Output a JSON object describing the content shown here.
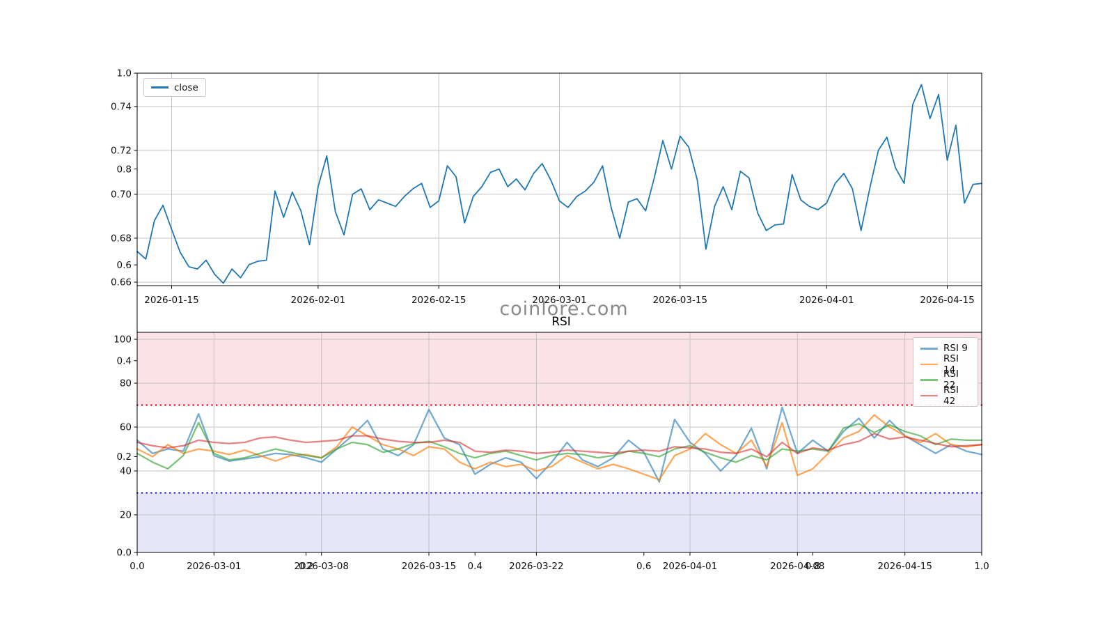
{
  "watermark": "coinlore.com",
  "colors": {
    "background": "#ffffff",
    "grid": "#c4c4c4",
    "spine": "#000000",
    "tick_text": "#111111",
    "watermark_gray": "#8a8a8a",
    "close_blue": "#1f77b4",
    "rsi9_blue": "#1f77b4",
    "rsi14_orange": "#ff7f0e",
    "rsi22_green": "#2ca02c",
    "rsi42_red": "#d62728",
    "overbought_dotted": "#e50019",
    "oversold_dotted": "#1616cd"
  },
  "chart_data": [
    {
      "type": "line",
      "name": "price",
      "title": "",
      "legend_position": "upper left",
      "grid": true,
      "ylim": [
        0.6584,
        0.7552
      ],
      "y_ticks": [
        0.66,
        0.68,
        0.7,
        0.72,
        0.74
      ],
      "y2_ticks": [
        1.0,
        0.8,
        0.6
      ],
      "x_tick_labels": [
        "2026-01-15",
        "2026-02-01",
        "2026-02-15",
        "2026-03-01",
        "2026-03-15",
        "2026-04-01",
        "2026-04-15"
      ],
      "x": [
        "2026-01-11",
        "2026-01-12",
        "2026-01-13",
        "2026-01-14",
        "2026-01-15",
        "2026-01-16",
        "2026-01-17",
        "2026-01-18",
        "2026-01-19",
        "2026-01-20",
        "2026-01-21",
        "2026-01-22",
        "2026-01-23",
        "2026-01-24",
        "2026-01-25",
        "2026-01-26",
        "2026-01-27",
        "2026-01-28",
        "2026-01-29",
        "2026-01-30",
        "2026-01-31",
        "2026-02-01",
        "2026-02-02",
        "2026-02-03",
        "2026-02-04",
        "2026-02-05",
        "2026-02-06",
        "2026-02-07",
        "2026-02-08",
        "2026-02-09",
        "2026-02-10",
        "2026-02-11",
        "2026-02-12",
        "2026-02-13",
        "2026-02-14",
        "2026-02-15",
        "2026-02-16",
        "2026-02-17",
        "2026-02-18",
        "2026-02-19",
        "2026-02-20",
        "2026-02-21",
        "2026-02-22",
        "2026-02-23",
        "2026-02-24",
        "2026-02-25",
        "2026-02-26",
        "2026-02-27",
        "2026-02-28",
        "2026-03-01",
        "2026-03-02",
        "2026-03-03",
        "2026-03-04",
        "2026-03-05",
        "2026-03-06",
        "2026-03-07",
        "2026-03-08",
        "2026-03-09",
        "2026-03-10",
        "2026-03-11",
        "2026-03-12",
        "2026-03-13",
        "2026-03-14",
        "2026-03-15",
        "2026-03-16",
        "2026-03-17",
        "2026-03-18",
        "2026-03-19",
        "2026-03-20",
        "2026-03-21",
        "2026-03-22",
        "2026-03-23",
        "2026-03-24",
        "2026-03-25",
        "2026-03-26",
        "2026-03-27",
        "2026-03-28",
        "2026-03-29",
        "2026-03-30",
        "2026-03-31",
        "2026-04-01",
        "2026-04-02",
        "2026-04-03",
        "2026-04-04",
        "2026-04-05",
        "2026-04-06",
        "2026-04-07",
        "2026-04-08",
        "2026-04-09",
        "2026-04-10",
        "2026-04-11",
        "2026-04-12",
        "2026-04-13",
        "2026-04-14",
        "2026-04-15",
        "2026-04-16",
        "2026-04-17",
        "2026-04-18",
        "2026-04-19"
      ],
      "series": [
        {
          "name": "close",
          "color": "#1f77b4",
          "width": 1.8,
          "opacity": 1,
          "values": [
            0.674,
            0.6705,
            0.688,
            0.695,
            0.684,
            0.6735,
            0.667,
            0.666,
            0.67,
            0.6635,
            0.6595,
            0.666,
            0.662,
            0.668,
            0.6695,
            0.67,
            0.7015,
            0.6895,
            0.701,
            0.6925,
            0.677,
            0.7035,
            0.7175,
            0.692,
            0.6815,
            0.7,
            0.7025,
            0.693,
            0.6975,
            0.696,
            0.6945,
            0.699,
            0.7025,
            0.705,
            0.694,
            0.697,
            0.713,
            0.708,
            0.687,
            0.699,
            0.7035,
            0.71,
            0.7115,
            0.7035,
            0.707,
            0.702,
            0.7095,
            0.714,
            0.7065,
            0.697,
            0.694,
            0.699,
            0.7015,
            0.7055,
            0.713,
            0.694,
            0.68,
            0.6965,
            0.698,
            0.6925,
            0.7075,
            0.7245,
            0.7115,
            0.7265,
            0.7215,
            0.7065,
            0.675,
            0.6945,
            0.7035,
            0.693,
            0.7105,
            0.7075,
            0.6915,
            0.6835,
            0.686,
            0.6865,
            0.709,
            0.6975,
            0.6945,
            0.693,
            0.696,
            0.705,
            0.7095,
            0.7025,
            0.6835,
            0.7025,
            0.72,
            0.726,
            0.712,
            0.705,
            0.741,
            0.75,
            0.7345,
            0.7455,
            0.7155,
            0.7315,
            0.696,
            0.7045,
            0.705
          ]
        }
      ]
    },
    {
      "type": "line",
      "name": "rsi",
      "title": "RSI",
      "legend_position": "upper right",
      "grid": true,
      "ylim": [
        2.86,
        103.17
      ],
      "y_ticks": [
        20,
        40,
        60,
        80,
        100
      ],
      "y2_ticks": [
        0.4,
        0.2,
        0.0
      ],
      "x2_ticks": [
        0.0,
        0.2,
        0.4,
        0.6,
        0.8,
        1.0
      ],
      "overbought_level": 70,
      "oversold_level": 30,
      "overbought_line_color": "#e50019",
      "oversold_line_color": "#1616cd",
      "overbought_band_color": "rgba(220,20,60,0.12)",
      "oversold_band_color": "rgba(60,60,210,0.13)",
      "x_tick_labels": [
        "2026-03-01",
        "2026-03-08",
        "2026-03-15",
        "2026-03-22",
        "2026-04-01",
        "2026-04-08",
        "2026-04-15"
      ],
      "x": [
        "2026-02-24",
        "2026-02-25",
        "2026-02-26",
        "2026-02-27",
        "2026-02-28",
        "2026-03-01",
        "2026-03-02",
        "2026-03-03",
        "2026-03-04",
        "2026-03-05",
        "2026-03-06",
        "2026-03-07",
        "2026-03-08",
        "2026-03-09",
        "2026-03-10",
        "2026-03-11",
        "2026-03-12",
        "2026-03-13",
        "2026-03-14",
        "2026-03-15",
        "2026-03-16",
        "2026-03-17",
        "2026-03-18",
        "2026-03-19",
        "2026-03-20",
        "2026-03-21",
        "2026-03-22",
        "2026-03-23",
        "2026-03-24",
        "2026-03-25",
        "2026-03-26",
        "2026-03-27",
        "2026-03-28",
        "2026-03-29",
        "2026-03-30",
        "2026-03-31",
        "2026-04-01",
        "2026-04-02",
        "2026-04-03",
        "2026-04-04",
        "2026-04-05",
        "2026-04-06",
        "2026-04-07",
        "2026-04-08",
        "2026-04-09",
        "2026-04-10",
        "2026-04-11",
        "2026-04-12",
        "2026-04-13",
        "2026-04-14",
        "2026-04-15",
        "2026-04-16",
        "2026-04-17",
        "2026-04-18",
        "2026-04-19",
        "2026-04-20"
      ],
      "series": [
        {
          "name": "RSI 9",
          "color": "#1f77b4",
          "width": 2.3,
          "opacity": 0.62,
          "values": [
            54,
            48,
            50,
            49,
            66,
            47,
            44.5,
            45.5,
            46.5,
            48,
            47.5,
            46,
            44,
            50,
            56,
            63,
            50,
            47,
            52,
            68,
            55,
            52,
            38.5,
            43,
            46,
            44,
            36.5,
            44,
            53,
            45,
            42,
            46,
            54,
            48.5,
            35,
            63.5,
            53,
            48,
            40,
            47,
            59.5,
            41,
            69,
            48,
            54,
            49,
            58,
            64,
            55,
            63,
            56,
            52,
            48,
            52,
            49,
            47.5
          ]
        },
        {
          "name": "RSI 14",
          "color": "#ff7f0e",
          "width": 2.3,
          "opacity": 0.68,
          "values": [
            50,
            46.5,
            52,
            48,
            50,
            49,
            47.5,
            49.5,
            47,
            44.5,
            47,
            47.5,
            46,
            51,
            60,
            56,
            52,
            50,
            47,
            51,
            50,
            44,
            41,
            44,
            42,
            43,
            40,
            42,
            47,
            44,
            41,
            43,
            41,
            38.5,
            36,
            47,
            50,
            57,
            52,
            48,
            54,
            42,
            62,
            38,
            41,
            48,
            55,
            58,
            65.5,
            60,
            56,
            53,
            57,
            52,
            51,
            52
          ]
        },
        {
          "name": "RSI 22",
          "color": "#2ca02c",
          "width": 2.3,
          "opacity": 0.62,
          "values": [
            48,
            44,
            41,
            47,
            62,
            48,
            45,
            46,
            48,
            50,
            48.5,
            47,
            46,
            50,
            53,
            52,
            48.5,
            50,
            52.5,
            53.5,
            51,
            48,
            46,
            48,
            49,
            47,
            45,
            47,
            48,
            47.5,
            46,
            47,
            49,
            48,
            46.5,
            50,
            51.5,
            48.5,
            46,
            44,
            47,
            45,
            50,
            49,
            50,
            49,
            59.5,
            61.5,
            57.5,
            61,
            58,
            56,
            52,
            54.5,
            54,
            54
          ]
        },
        {
          "name": "RSI 42",
          "color": "#d62728",
          "width": 2.3,
          "opacity": 0.58,
          "values": [
            53,
            51.5,
            50.5,
            51.5,
            54,
            53,
            52.5,
            53,
            55,
            55.5,
            54,
            53,
            53.5,
            54,
            56,
            56,
            54.5,
            53.5,
            53,
            53,
            54,
            53,
            49,
            48.5,
            49.5,
            49,
            48,
            48.5,
            49.5,
            49,
            48.5,
            48,
            49,
            49.5,
            49,
            51,
            50.5,
            50,
            48.5,
            48,
            50,
            46.5,
            53,
            48,
            50.5,
            49.5,
            52,
            53.5,
            57,
            54.5,
            55.5,
            54,
            52.5,
            51,
            51.5,
            52
          ]
        }
      ]
    }
  ]
}
